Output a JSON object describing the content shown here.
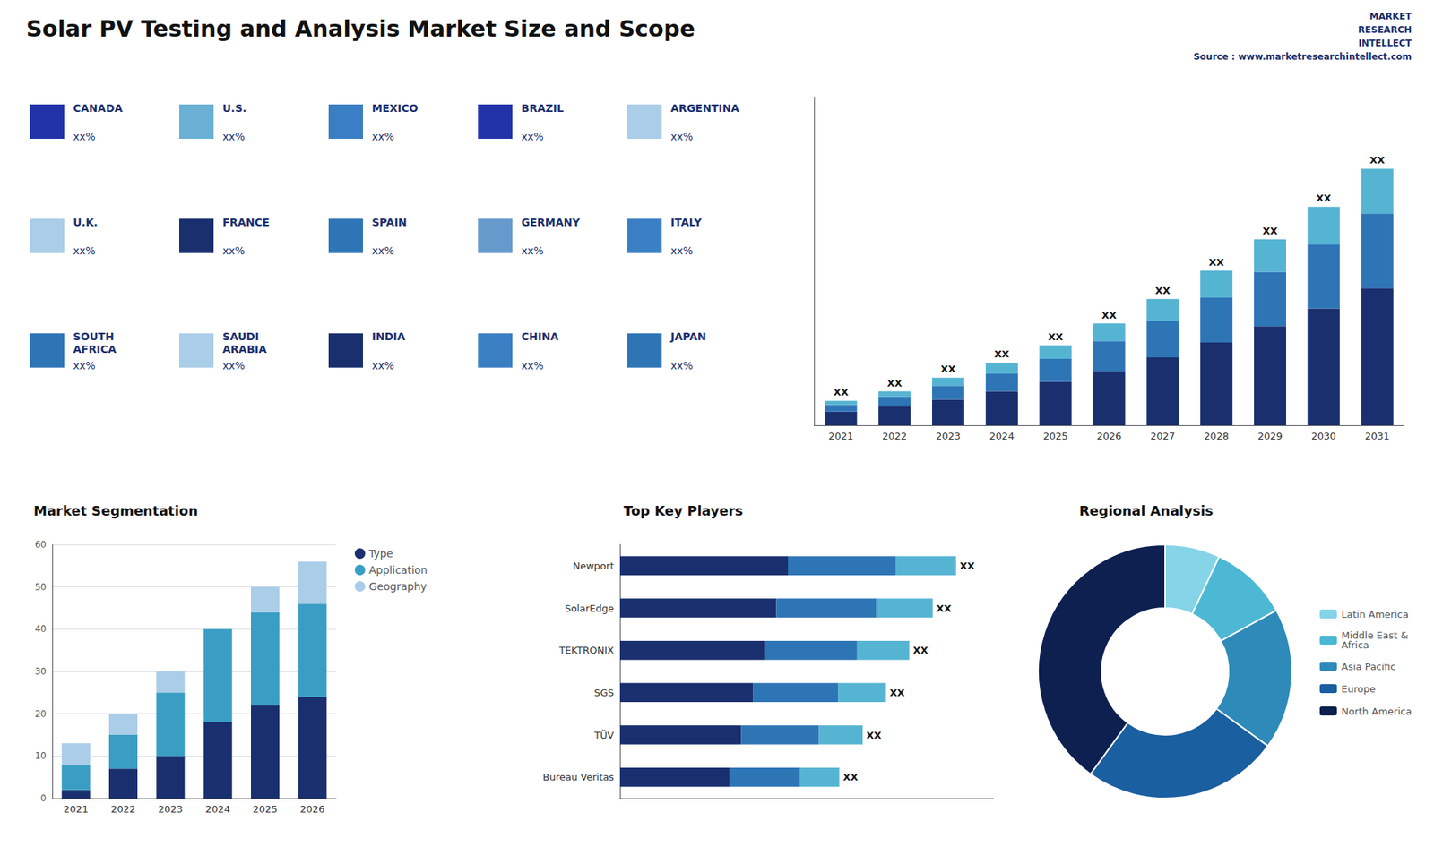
{
  "chart_data": [
    {
      "type": "bar",
      "title": "Solar PV Testing and Analysis Market Size and Scope",
      "categories": [
        "2021",
        "2022",
        "2023",
        "2024",
        "2025",
        "2026",
        "2027",
        "2028",
        "2029",
        "2030",
        "2031"
      ],
      "series": [
        {
          "color": "#1a2f6e",
          "values": [
            1.0,
            1.4,
            1.9,
            2.5,
            3.2,
            4.0,
            5.0,
            6.1,
            7.3,
            8.6,
            10.1
          ]
        },
        {
          "color": "#2e75b6",
          "values": [
            0.5,
            0.7,
            1.0,
            1.3,
            1.7,
            2.2,
            2.7,
            3.3,
            4.0,
            4.7,
            5.5
          ]
        },
        {
          "color": "#56b4d3",
          "values": [
            0.3,
            0.4,
            0.6,
            0.8,
            1.0,
            1.3,
            1.6,
            2.0,
            2.4,
            2.8,
            3.3
          ],
          "value_labels": [
            "XX",
            "XX",
            "XX",
            "XX",
            "XX",
            "XX",
            "XX",
            "XX",
            "XX",
            "XX",
            "XX"
          ]
        }
      ],
      "stacked": true,
      "data_labels": true,
      "ylim": [
        0,
        24.192
      ],
      "grid": false,
      "tick_labels": "x",
      "annotations": [
        "MARKET",
        "RESEARCH",
        "INTELLECT",
        "Source : www.marketresearchintellect.com"
      ]
    },
    {
      "type": "map",
      "categories": [
        "CANADA",
        "U.S.",
        "MEXICO",
        "BRAZIL",
        "ARGENTINA",
        "U.K.",
        "FRANCE",
        "SPAIN",
        "GERMANY",
        "ITALY",
        "SOUTH\nAFRICA",
        "SAUDI\nARABIA",
        "INDIA",
        "CHINA",
        "JAPAN"
      ],
      "value_labels": [
        "xx%",
        "xx%",
        "xx%",
        "xx%",
        "xx%",
        "xx%",
        "xx%",
        "xx%",
        "xx%",
        "xx%",
        "xx%",
        "xx%",
        "xx%",
        "xx%",
        "xx%"
      ],
      "colors": [
        "#2233aa",
        "#6ab0d4",
        "#3a7fc4",
        "#2233aa",
        "#aacde8",
        "#aacde8",
        "#1a2f6e",
        "#2e75b6",
        "#6699cc",
        "#3a7fc4",
        "#2e75b6",
        "#aacde8",
        "#1a2f6e",
        "#3a7fc4",
        "#2e75b6"
      ],
      "color": "#1a2f6e"
    },
    {
      "type": "bar",
      "title": "Market Segmentation",
      "categories": [
        "2021",
        "2022",
        "2023",
        "2024",
        "2025",
        "2026"
      ],
      "series": [
        {
          "name": "Type",
          "color": "#1a2f6e",
          "values": [
            2,
            7,
            10,
            18,
            22,
            24
          ]
        },
        {
          "name": "Application",
          "color": "#3a9ec4",
          "values": [
            6,
            8,
            15,
            22,
            22,
            22
          ]
        },
        {
          "name": "Geography",
          "color": "#aacde8",
          "values": [
            5,
            5,
            5,
            0,
            6,
            10
          ]
        }
      ],
      "stacked": true,
      "ylim": [
        0,
        60
      ],
      "yticks": [
        0,
        10,
        20,
        30,
        40,
        50,
        60
      ],
      "grid": true,
      "legend": "right"
    },
    {
      "type": "bar",
      "title": "Top Key Players",
      "orientation": "horizontal",
      "categories": [
        "Newport",
        "SolarEdge",
        "TEKTRONIX",
        "SGS",
        "TÜV",
        "Bureau Veritas"
      ],
      "series": [
        {
          "color": "#1a2f6e",
          "values": [
            0.36,
            0.335,
            0.31,
            0.285,
            0.26,
            0.235
          ]
        },
        {
          "color": "#2e75b6",
          "values": [
            0.2304,
            0.2144,
            0.1984,
            0.1824,
            0.1664,
            0.1504
          ]
        },
        {
          "color": "#56b4d3",
          "values": [
            0.1296,
            0.1206,
            0.1116,
            0.1026,
            0.0936,
            0.0846
          ],
          "value_labels": [
            "XX",
            "XX",
            "XX",
            "XX",
            "XX",
            "XX"
          ]
        }
      ],
      "stacked": true,
      "data_labels": true,
      "xlim": [
        0,
        0.8
      ],
      "grid": false,
      "tick_labels": "y"
    },
    {
      "type": "pie",
      "title": "Regional Analysis",
      "categories": [
        "Latin America",
        "Middle East &\nAfrica",
        "Asia Pacific",
        "Europe",
        "North America"
      ],
      "values": [
        7,
        10,
        18,
        25,
        40
      ],
      "colors": [
        "#85d4e8",
        "#4db8d4",
        "#2e8ab8",
        "#1a5fa0",
        "#0d2050"
      ],
      "legend": "right"
    }
  ]
}
